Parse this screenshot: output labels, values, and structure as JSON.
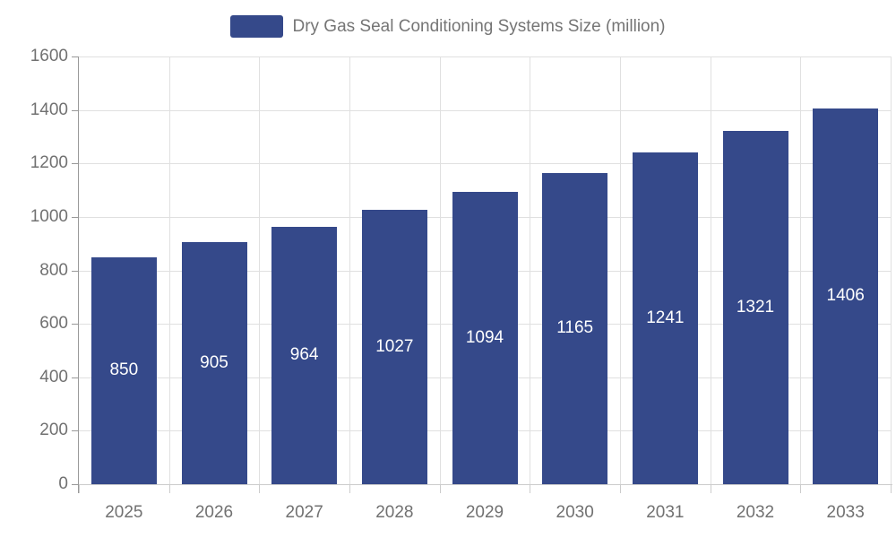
{
  "chart_data": {
    "type": "bar",
    "title": "Dry Gas Seal Conditioning Systems Size (million)",
    "categories": [
      "2025",
      "2026",
      "2027",
      "2028",
      "2029",
      "2030",
      "2031",
      "2032",
      "2033"
    ],
    "values": [
      850,
      905,
      964,
      1027,
      1094,
      1165,
      1241,
      1321,
      1406
    ],
    "xlabel": "",
    "ylabel": "",
    "ylim": [
      0,
      1600
    ],
    "yticks": [
      0,
      200,
      400,
      600,
      800,
      1000,
      1200,
      1400,
      1600
    ],
    "grid": true,
    "legend_position": "top-center",
    "colors": {
      "bar": "#35498a",
      "bar_label": "#ffffff",
      "axis_text": "#717171",
      "title_text": "#757575",
      "grid_line": "#e0e0e0",
      "y_axis_line": "#999999",
      "x_axis_line": "#cccccc",
      "background": "#ffffff"
    }
  }
}
